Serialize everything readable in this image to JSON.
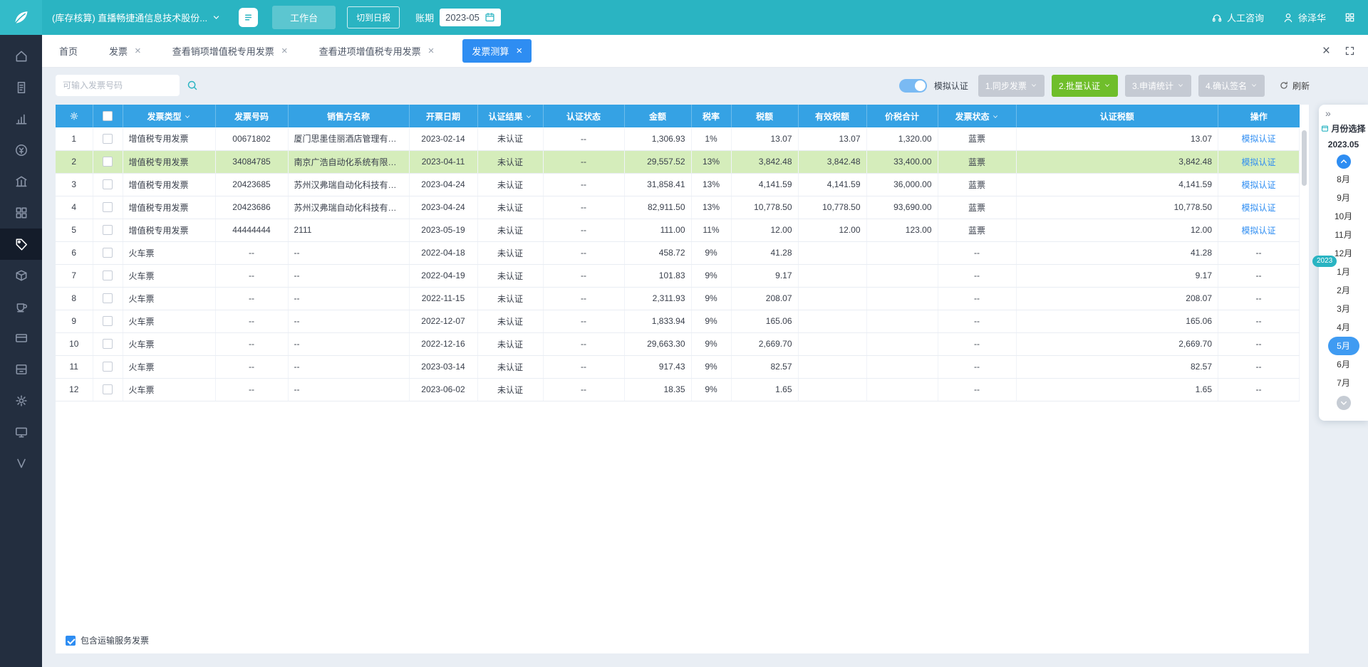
{
  "topbar": {
    "company": "(库存核算) 直播畅捷通信息技术股份...",
    "workbench_label": "工作台",
    "switch_daily_label": "切到日报",
    "period_label": "账期",
    "period_value": "2023-05",
    "support_label": "人工咨询",
    "user_name": "徐泽华"
  },
  "sidebar": {
    "items": [
      {
        "icon": "home-icon",
        "active": false
      },
      {
        "icon": "invoice-icon",
        "active": false
      },
      {
        "icon": "report-chart-icon",
        "active": false
      },
      {
        "icon": "funds-icon",
        "active": false
      },
      {
        "icon": "bank-icon",
        "active": false
      },
      {
        "icon": "modules-icon",
        "active": false
      },
      {
        "icon": "goods-tag-icon",
        "active": true
      },
      {
        "icon": "warehouse-icon",
        "active": false
      },
      {
        "icon": "service-icon",
        "active": false
      },
      {
        "icon": "voucher-icon",
        "active": false
      },
      {
        "icon": "archive-icon",
        "active": false
      },
      {
        "icon": "settings-icon",
        "active": false
      },
      {
        "icon": "screen-icon",
        "active": false
      },
      {
        "icon": "brand-icon",
        "active": false
      }
    ]
  },
  "tabs": {
    "items": [
      {
        "label": "首页",
        "closable": false,
        "active": false
      },
      {
        "label": "发票",
        "closable": true,
        "active": false
      },
      {
        "label": "查看销项增值税专用发票",
        "closable": true,
        "active": false
      },
      {
        "label": "查看进项增值税专用发票",
        "closable": true,
        "active": false
      },
      {
        "label": "发票测算",
        "closable": true,
        "active": true
      }
    ]
  },
  "toolbar": {
    "search_placeholder": "可输入发票号码",
    "toggle_label": "模拟认证",
    "toggle_on": true,
    "buttons": [
      {
        "label": "1.同步发票",
        "style": "gray"
      },
      {
        "label": "2.批量认证",
        "style": "green"
      },
      {
        "label": "3.申请统计",
        "style": "gray"
      },
      {
        "label": "4.确认签名",
        "style": "gray"
      }
    ],
    "refresh_label": "刷新"
  },
  "table": {
    "columns": [
      {
        "key": "type",
        "label": "发票类型",
        "sortable": true
      },
      {
        "key": "invoice_no",
        "label": "发票号码",
        "sortable": false
      },
      {
        "key": "seller",
        "label": "销售方名称",
        "sortable": false
      },
      {
        "key": "date",
        "label": "开票日期",
        "sortable": false
      },
      {
        "key": "result",
        "label": "认证结果",
        "sortable": true
      },
      {
        "key": "status",
        "label": "认证状态",
        "sortable": false
      },
      {
        "key": "amount",
        "label": "金额",
        "sortable": false
      },
      {
        "key": "rate",
        "label": "税率",
        "sortable": false
      },
      {
        "key": "tax",
        "label": "税额",
        "sortable": false
      },
      {
        "key": "valid_tax",
        "label": "有效税额",
        "sortable": false
      },
      {
        "key": "total_with_tax",
        "label": "价税合计",
        "sortable": false
      },
      {
        "key": "invoice_state",
        "label": "发票状态",
        "sortable": true
      },
      {
        "key": "certified_tax",
        "label": "认证税额",
        "sortable": false
      },
      {
        "key": "action",
        "label": "操作",
        "sortable": false
      }
    ],
    "rows": [
      {
        "no": 1,
        "type": "增值税专用发票",
        "invoice_no": "00671802",
        "seller": "厦门思墨佳丽酒店管理有限公司",
        "date": "2023-02-14",
        "result": "未认证",
        "status": "--",
        "amount": "1,306.93",
        "rate": "1%",
        "tax": "13.07",
        "valid_tax": "13.07",
        "total_with_tax": "1,320.00",
        "invoice_state": "蓝票",
        "certified_tax": "13.07",
        "action": "模拟认证",
        "highlighted": false
      },
      {
        "no": 2,
        "type": "增值税专用发票",
        "invoice_no": "34084785",
        "seller": "南京广浩自动化系统有限责任公司",
        "date": "2023-04-11",
        "result": "未认证",
        "status": "--",
        "amount": "29,557.52",
        "rate": "13%",
        "tax": "3,842.48",
        "valid_tax": "3,842.48",
        "total_with_tax": "33,400.00",
        "invoice_state": "蓝票",
        "certified_tax": "3,842.48",
        "action": "模拟认证",
        "highlighted": true
      },
      {
        "no": 3,
        "type": "增值税专用发票",
        "invoice_no": "20423685",
        "seller": "苏州汉弗瑞自动化科技有限公司",
        "date": "2023-04-24",
        "result": "未认证",
        "status": "--",
        "amount": "31,858.41",
        "rate": "13%",
        "tax": "4,141.59",
        "valid_tax": "4,141.59",
        "total_with_tax": "36,000.00",
        "invoice_state": "蓝票",
        "certified_tax": "4,141.59",
        "action": "模拟认证",
        "highlighted": false
      },
      {
        "no": 4,
        "type": "增值税专用发票",
        "invoice_no": "20423686",
        "seller": "苏州汉弗瑞自动化科技有限公司",
        "date": "2023-04-24",
        "result": "未认证",
        "status": "--",
        "amount": "82,911.50",
        "rate": "13%",
        "tax": "10,778.50",
        "valid_tax": "10,778.50",
        "total_with_tax": "93,690.00",
        "invoice_state": "蓝票",
        "certified_tax": "10,778.50",
        "action": "模拟认证",
        "highlighted": false
      },
      {
        "no": 5,
        "type": "增值税专用发票",
        "invoice_no": "44444444",
        "seller": "2111",
        "date": "2023-05-19",
        "result": "未认证",
        "status": "--",
        "amount": "111.00",
        "rate": "11%",
        "tax": "12.00",
        "valid_tax": "12.00",
        "total_with_tax": "123.00",
        "invoice_state": "蓝票",
        "certified_tax": "12.00",
        "action": "模拟认证",
        "highlighted": false
      },
      {
        "no": 6,
        "type": "火车票",
        "invoice_no": "--",
        "seller": "--",
        "date": "2022-04-18",
        "result": "未认证",
        "status": "--",
        "amount": "458.72",
        "rate": "9%",
        "tax": "41.28",
        "valid_tax": "",
        "total_with_tax": "",
        "invoice_state": "--",
        "certified_tax": "41.28",
        "action": "--",
        "highlighted": false
      },
      {
        "no": 7,
        "type": "火车票",
        "invoice_no": "--",
        "seller": "--",
        "date": "2022-04-19",
        "result": "未认证",
        "status": "--",
        "amount": "101.83",
        "rate": "9%",
        "tax": "9.17",
        "valid_tax": "",
        "total_with_tax": "",
        "invoice_state": "--",
        "certified_tax": "9.17",
        "action": "--",
        "highlighted": false
      },
      {
        "no": 8,
        "type": "火车票",
        "invoice_no": "--",
        "seller": "--",
        "date": "2022-11-15",
        "result": "未认证",
        "status": "--",
        "amount": "2,311.93",
        "rate": "9%",
        "tax": "208.07",
        "valid_tax": "",
        "total_with_tax": "",
        "invoice_state": "--",
        "certified_tax": "208.07",
        "action": "--",
        "highlighted": false
      },
      {
        "no": 9,
        "type": "火车票",
        "invoice_no": "--",
        "seller": "--",
        "date": "2022-12-07",
        "result": "未认证",
        "status": "--",
        "amount": "1,833.94",
        "rate": "9%",
        "tax": "165.06",
        "valid_tax": "",
        "total_with_tax": "",
        "invoice_state": "--",
        "certified_tax": "165.06",
        "action": "--",
        "highlighted": false
      },
      {
        "no": 10,
        "type": "火车票",
        "invoice_no": "--",
        "seller": "--",
        "date": "2022-12-16",
        "result": "未认证",
        "status": "--",
        "amount": "29,663.30",
        "rate": "9%",
        "tax": "2,669.70",
        "valid_tax": "",
        "total_with_tax": "",
        "invoice_state": "--",
        "certified_tax": "2,669.70",
        "action": "--",
        "highlighted": false
      },
      {
        "no": 11,
        "type": "火车票",
        "invoice_no": "--",
        "seller": "--",
        "date": "2023-03-14",
        "result": "未认证",
        "status": "--",
        "amount": "917.43",
        "rate": "9%",
        "tax": "82.57",
        "valid_tax": "",
        "total_with_tax": "",
        "invoice_state": "--",
        "certified_tax": "82.57",
        "action": "--",
        "highlighted": false
      },
      {
        "no": 12,
        "type": "火车票",
        "invoice_no": "--",
        "seller": "--",
        "date": "2023-06-02",
        "result": "未认证",
        "status": "--",
        "amount": "18.35",
        "rate": "9%",
        "tax": "1.65",
        "valid_tax": "",
        "total_with_tax": "",
        "invoice_state": "--",
        "certified_tax": "1.65",
        "action": "--",
        "highlighted": false
      }
    ]
  },
  "month_panel": {
    "title": "月份选择",
    "current": "2023.05",
    "year_badge": "2023",
    "months": [
      "8月",
      "9月",
      "10月",
      "11月",
      "12月",
      "1月",
      "2月",
      "3月",
      "4月",
      "5月",
      "6月",
      "7月"
    ],
    "selected": "5月"
  },
  "footer": {
    "checkbox_label": "包含运输服务发票",
    "checked": true
  },
  "colors": {
    "topbar_teal": "#2ab4c2",
    "sidebar_dark": "#232e3f",
    "active_tab_blue": "#2e8df2",
    "table_header_blue": "#35a2e4",
    "green_button": "#6fbe2b",
    "gray_button": "#c5cad3",
    "row_highlight_green": "#d5edbb",
    "link_blue": "#2e8df2",
    "year_badge_teal": "#2ab4c2"
  }
}
